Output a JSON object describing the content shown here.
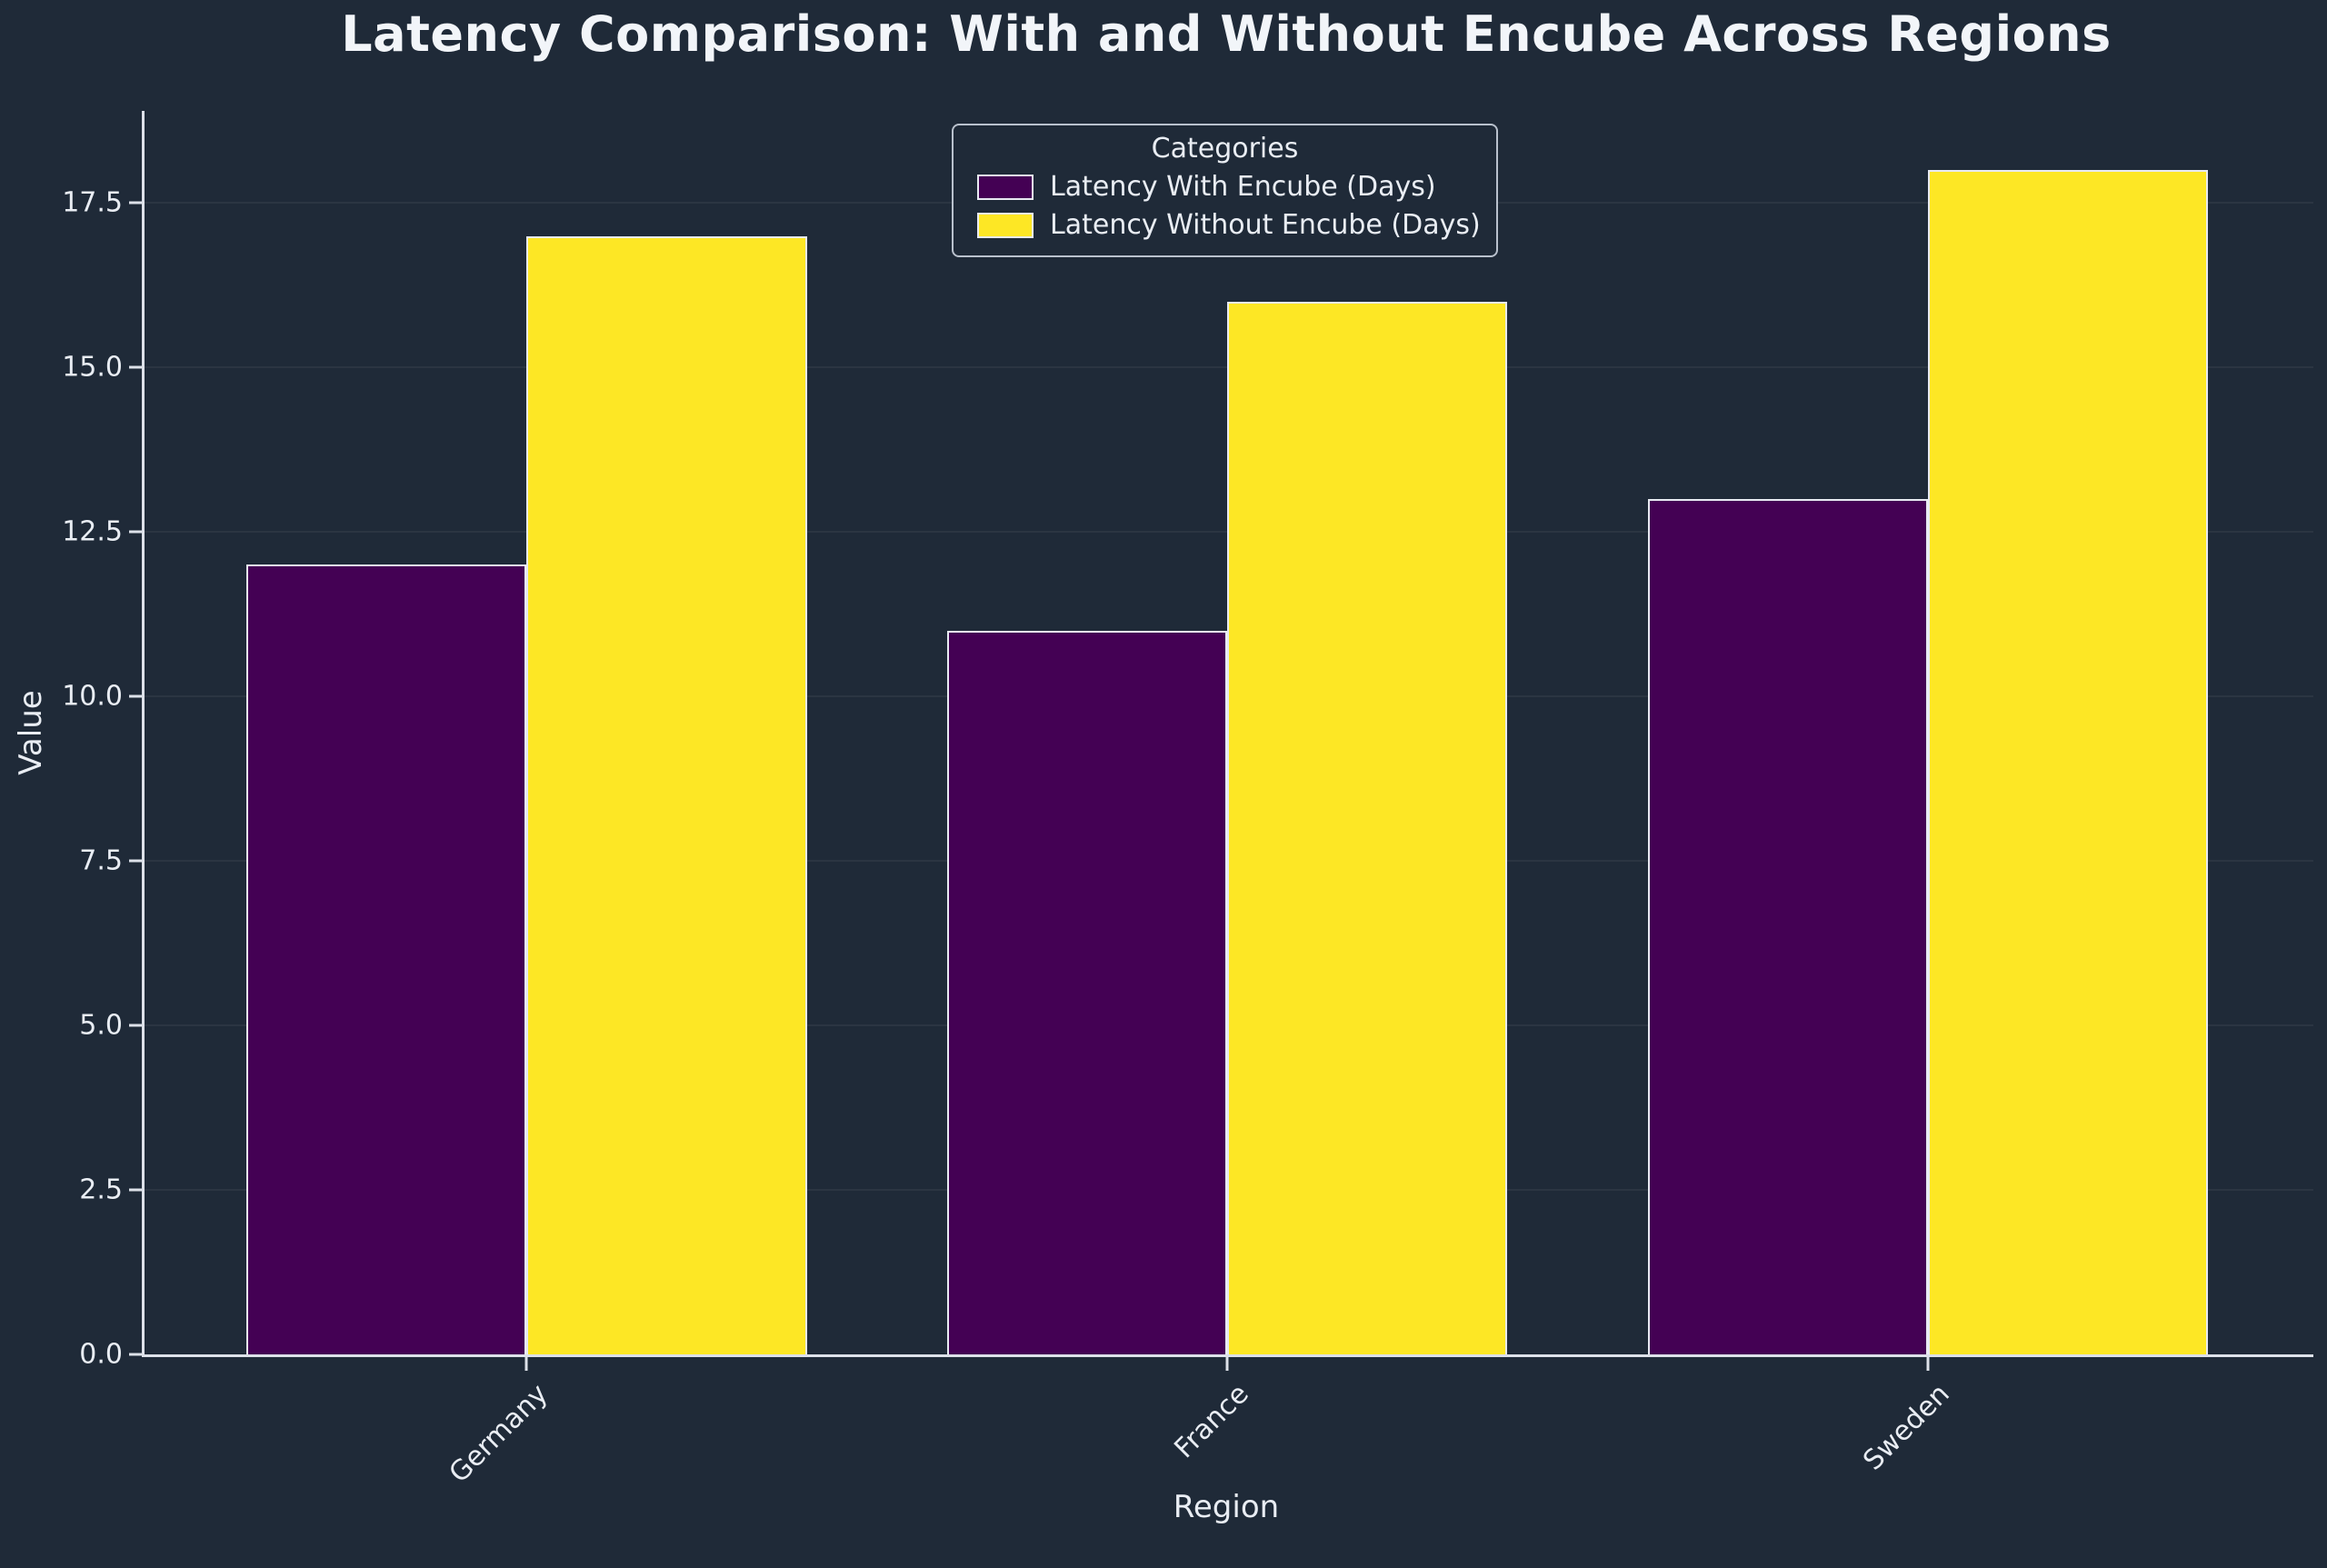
{
  "chart_data": {
    "type": "bar",
    "title": "Latency Comparison: With and Without Encube Across Regions",
    "xlabel": "Region",
    "ylabel": "Value",
    "categories": [
      "Germany",
      "France",
      "Sweden"
    ],
    "series": [
      {
        "name": "Latency With Encube (Days)",
        "color": "#440154",
        "values": [
          12,
          11,
          13
        ]
      },
      {
        "name": "Latency Without Encube (Days)",
        "color": "#fde725",
        "values": [
          17,
          16,
          18
        ]
      }
    ],
    "legend": {
      "title": "Categories",
      "position": "upper center"
    },
    "yticks": [
      0.0,
      2.5,
      5.0,
      7.5,
      10.0,
      12.5,
      15.0,
      17.5
    ],
    "ytick_labels": [
      "0.0",
      "2.5",
      "5.0",
      "7.5",
      "10.0",
      "12.5",
      "15.0",
      "17.5"
    ],
    "ylim": [
      0,
      18.9
    ],
    "xlim": [
      -0.545,
      2.55
    ],
    "bar_width": 0.4,
    "grid": true
  },
  "colors": {
    "background": "#1f2a38",
    "text": "#e9edf3",
    "spine": "#dde1e9",
    "grid": "rgba(255,255,255,0.055)",
    "bar_edge": "#e8eaf2",
    "legend_border": "#b9c1cd",
    "series_with_encube": "#440154",
    "series_without_encube": "#fde725"
  }
}
